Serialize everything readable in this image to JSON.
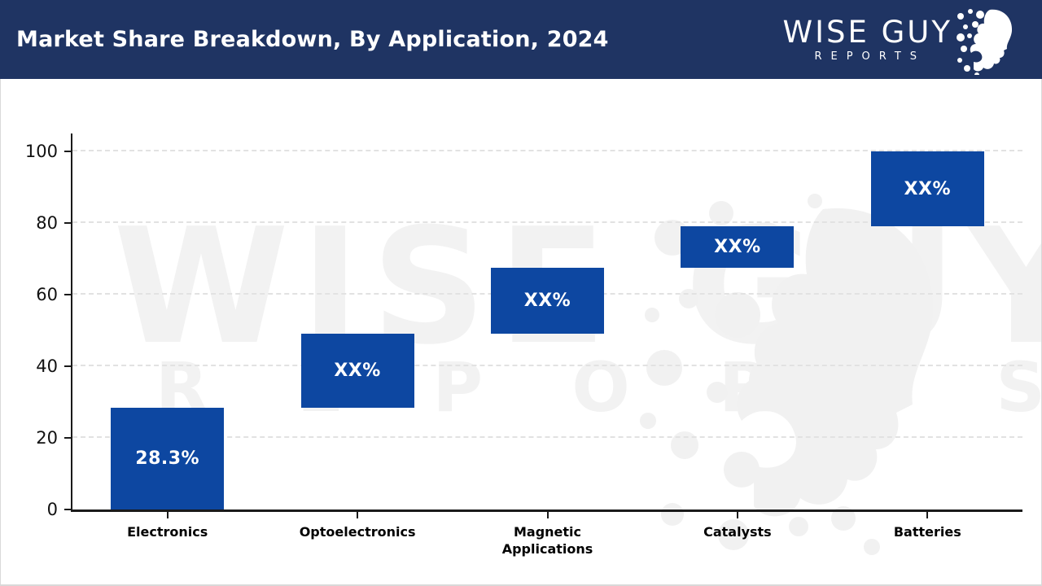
{
  "header": {
    "title": "Market Share Breakdown, By Application, 2024",
    "logo": {
      "line1": "WISE GUY",
      "line2": "REPORTS"
    }
  },
  "watermark": {
    "line1": "WISE GUY",
    "line2": "R E P O R T S"
  },
  "colors": {
    "header_bg": "#1f3463",
    "bar": "#0d47a1",
    "axis": "#1a1a1a",
    "gridline": "#e2e2e2",
    "watermark": "#f2f2f2",
    "text_on_dark": "#ffffff"
  },
  "chart_data": {
    "type": "bar",
    "subtype": "waterfall",
    "title": "Market Share Breakdown, By Application, 2024",
    "categories": [
      "Electronics",
      "Optoelectronics",
      "Magnetic Applications",
      "Catalysts",
      "Batteries"
    ],
    "bars": [
      {
        "category": "Electronics",
        "start": 0,
        "end": 28.3,
        "label": "28.3%"
      },
      {
        "category": "Optoelectronics",
        "start": 28.3,
        "end": 49,
        "label": "XX%"
      },
      {
        "category": "Magnetic Applications",
        "start": 49,
        "end": 67.5,
        "label": "XX%"
      },
      {
        "category": "Catalysts",
        "start": 67.5,
        "end": 79,
        "label": "XX%"
      },
      {
        "category": "Batteries",
        "start": 79,
        "end": 100,
        "label": "XX%"
      }
    ],
    "ylim": [
      0,
      100
    ],
    "yticks": [
      0,
      20,
      40,
      60,
      80,
      100
    ],
    "xlabel": "",
    "ylabel": "",
    "grid": "horizontal-dashed",
    "legend": "none"
  }
}
